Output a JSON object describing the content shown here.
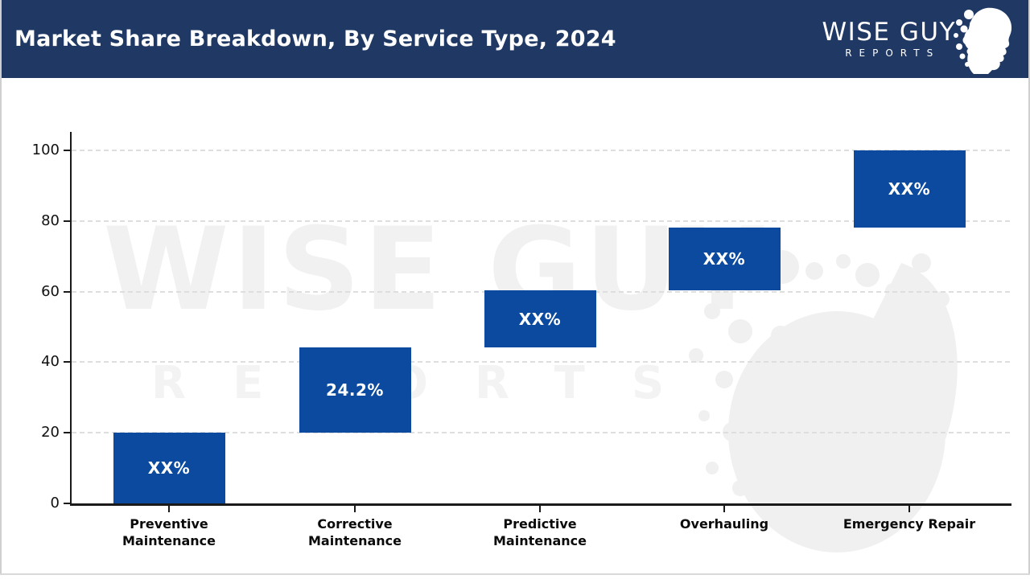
{
  "header": {
    "title": "Market Share Breakdown, By Service Type, 2024",
    "logo": {
      "name": "WISE GUY",
      "sub": "REPORTS"
    }
  },
  "watermark": {
    "line1": "WISE GUY",
    "line2": "REPORTS"
  },
  "chart_data": {
    "type": "bar",
    "subtype": "floating-waterfall",
    "title": "Market Share Breakdown, By Service Type, 2024",
    "categories": [
      "Preventive Maintenance",
      "Corrective Maintenance",
      "Predictive Maintenance",
      "Overhauling",
      "Emergency Repair"
    ],
    "category_lines": [
      [
        "Preventive",
        "Maintenance"
      ],
      [
        "Corrective",
        "Maintenance"
      ],
      [
        "Predictive",
        "Maintenance"
      ],
      [
        "Overhauling"
      ],
      [
        "Emergency Repair"
      ]
    ],
    "bars": [
      {
        "category": "Preventive Maintenance",
        "start": 0,
        "end": 20,
        "label": "XX%"
      },
      {
        "category": "Corrective Maintenance",
        "start": 20,
        "end": 44.2,
        "label": "24.2%"
      },
      {
        "category": "Predictive Maintenance",
        "start": 44.2,
        "end": 60.3,
        "label": "XX%"
      },
      {
        "category": "Overhauling",
        "start": 60.3,
        "end": 78.2,
        "label": "XX%"
      },
      {
        "category": "Emergency Repair",
        "start": 78.2,
        "end": 100,
        "label": "XX%"
      }
    ],
    "y_ticks": [
      0,
      20,
      40,
      60,
      80,
      100
    ],
    "ylim": [
      0,
      106
    ],
    "xlabel": "",
    "ylabel": "",
    "grid": "horizontal-dashed",
    "legend": "none",
    "bar_color": "#0b4a9e",
    "bar_label_color": "#ffffff"
  },
  "colors": {
    "header_bg": "#1f3864",
    "bar": "#0b4a9e",
    "grid": "#dedede",
    "axis": "#1a1a1a",
    "watermark": "#f1f1f1"
  }
}
